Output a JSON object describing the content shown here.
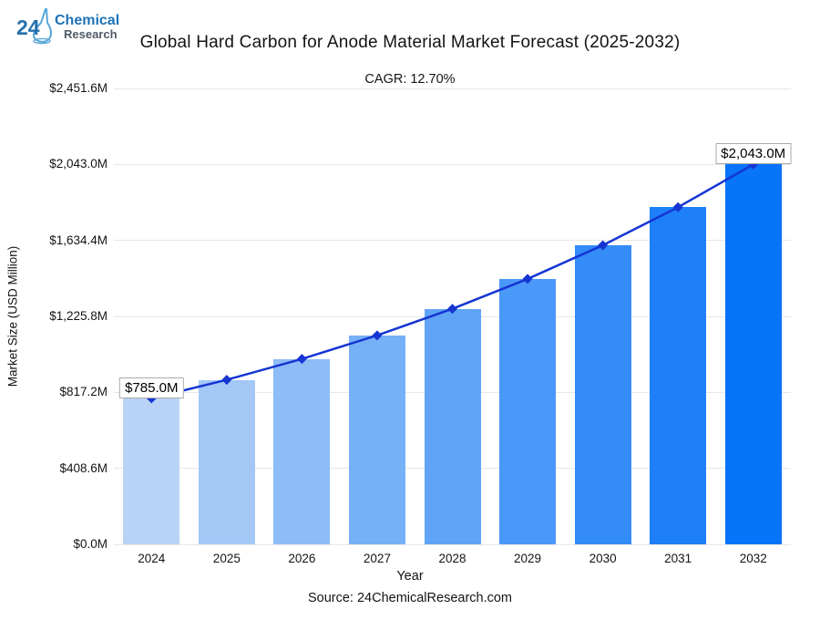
{
  "logo": {
    "number": "24",
    "line1": "Chemical",
    "line2": "Research",
    "number_color": "#2470ad",
    "line1_color": "#1d72b8",
    "line2_color": "#4f5b66",
    "flask_color": "#58a6d8"
  },
  "header": {
    "title": "Global Hard Carbon for Anode Material Market Forecast (2025-2032)",
    "subtitle": "CAGR: 12.70%"
  },
  "chart_data": {
    "type": "bar",
    "overlay": "line",
    "title": "Global Hard Carbon for Anode Material Market Forecast (2025-2032)",
    "subtitle": "CAGR: 12.70%",
    "categories": [
      "2024",
      "2025",
      "2026",
      "2027",
      "2028",
      "2029",
      "2030",
      "2031",
      "2032"
    ],
    "values": [
      785.0,
      884.7,
      997.1,
      1123.7,
      1266.4,
      1427.2,
      1608.5,
      1812.8,
      2043.0
    ],
    "bar_colors": [
      "#b9d3f6",
      "#a3c8f6",
      "#8dbcf6",
      "#76b0f7",
      "#60a4f7",
      "#4a98f7",
      "#338cf8",
      "#1d80f8",
      "#0774f9"
    ],
    "line_color": "#1535d3",
    "marker_shape": "diamond",
    "ylabel": "Market Size (USD Million)",
    "xlabel": "Year",
    "ylim": [
      0,
      2451.6
    ],
    "grid": "horizontal",
    "gridline_color": "#e7e7e7",
    "yticks": [
      {
        "value": 0,
        "label": "$0.0M"
      },
      {
        "value": 408.6,
        "label": "$408.6M"
      },
      {
        "value": 817.2,
        "label": "$817.2M"
      },
      {
        "value": 1225.8,
        "label": "$1,225.8M"
      },
      {
        "value": 1634.4,
        "label": "$1,634.4M"
      },
      {
        "value": 2043.0,
        "label": "$2,043.0M"
      },
      {
        "value": 2451.6,
        "label": "$2,451.6M"
      }
    ],
    "annotations": [
      {
        "index": 0,
        "text": "$785.0M"
      },
      {
        "index": 8,
        "text": "$2,043.0M"
      }
    ]
  },
  "footer": {
    "source": "Source: 24ChemicalResearch.com"
  }
}
